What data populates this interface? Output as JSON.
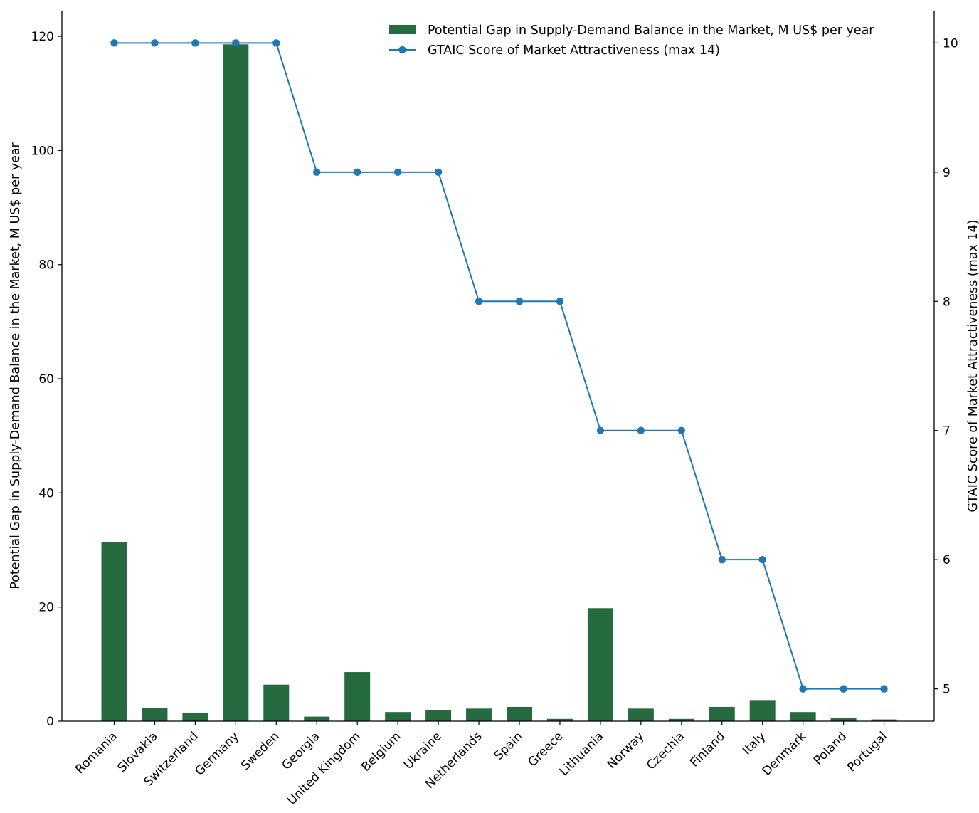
{
  "chart_data": {
    "type": "bar",
    "categories": [
      "Romania",
      "Slovakia",
      "Switzerland",
      "Germany",
      "Sweden",
      "Georgia",
      "United Kingdom",
      "Belgium",
      "Ukraine",
      "Netherlands",
      "Spain",
      "Greece",
      "Lithuania",
      "Norway",
      "Czechia",
      "Finland",
      "Italy",
      "Denmark",
      "Poland",
      "Portugal"
    ],
    "series": [
      {
        "name": "Potential Gap in Supply-Demand Balance in the Market, M US$ per year",
        "kind": "bar",
        "axis": "left",
        "color": "#256b3f",
        "values": [
          31.4,
          2.3,
          1.4,
          118.6,
          6.4,
          0.8,
          8.6,
          1.6,
          1.9,
          2.2,
          2.5,
          0.4,
          19.8,
          2.2,
          0.4,
          2.5,
          3.7,
          1.6,
          0.6,
          0.3
        ]
      },
      {
        "name": "GTAIC Score of Market Attractiveness (max 14)",
        "kind": "line",
        "axis": "right",
        "color": "#1f77b4",
        "values": [
          10,
          10,
          10,
          10,
          10,
          9,
          9,
          9,
          9,
          8,
          8,
          8,
          7,
          7,
          7,
          6,
          6,
          5,
          5,
          5
        ]
      }
    ],
    "ylabel": "Potential Gap in Supply-Demand Balance in the Market, M US$ per year",
    "y2label": "GTAIC Score of Market Attractiveness (max 14)",
    "ylim": [
      0,
      124.5
    ],
    "y2lim": [
      4.75,
      10.25
    ],
    "yticks": [
      0,
      20,
      40,
      60,
      80,
      100,
      120
    ],
    "y2ticks": [
      5,
      6,
      7,
      8,
      9,
      10
    ],
    "grid": false,
    "legend_position": "top-right"
  }
}
